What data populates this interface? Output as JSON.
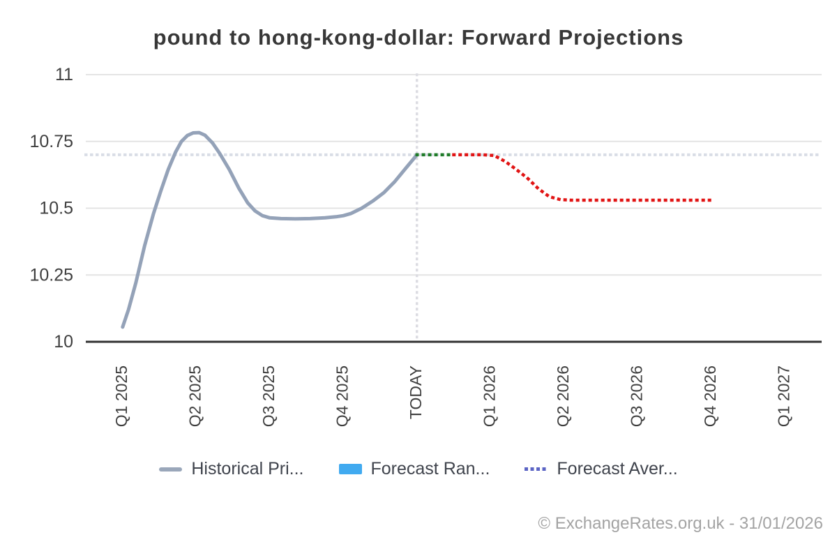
{
  "title": "pound to hong-kong-dollar: Forward Projections",
  "watermark": "© ExchangeRates.org.uk - 31/01/2026",
  "legend": {
    "items": [
      {
        "label": "Historical Pri...",
        "swatch": "line",
        "color": "#9AA7BA"
      },
      {
        "label": "Forecast Ran...",
        "swatch": "rect",
        "color": "#41AAF0"
      },
      {
        "label": "Forecast Aver...",
        "swatch": "dots",
        "color": "#5B64C4"
      }
    ]
  },
  "colors": {
    "historical_line": "#94A2B8",
    "forecast_near_green": "#1F7B28",
    "forecast_average_red": "#E11414",
    "current_rate_dotted": "#D9DDE6",
    "today_line": "#DCDCE2",
    "gridline": "#E4E4E4",
    "axis": "#333333"
  },
  "chart_data": {
    "type": "line",
    "title": "pound to hong-kong-dollar: Forward Projections",
    "categories": [
      "Q1 2025",
      "Q2 2025",
      "Q3 2025",
      "Q4 2025",
      "TODAY",
      "Q1 2026",
      "Q2 2026",
      "Q3 2026",
      "Q4 2026",
      "Q1 2027"
    ],
    "ylim": [
      10,
      11
    ],
    "yticks": [
      10,
      10.25,
      10.5,
      10.75,
      11
    ],
    "ytick_labels": [
      "10",
      "10.25",
      "10.5",
      "10.75",
      "11"
    ],
    "grid": "horizontal",
    "legend_position": "bottom",
    "key_values": {
      "historical_price": {
        "Q1 2025": 10.06,
        "Q2 2025": 10.78,
        "Q3 2025": 10.46,
        "Q4 2025": 10.47,
        "TODAY": 10.7
      },
      "forecast_average": {
        "Q1 2026": 10.7,
        "Q2 2026": 10.53,
        "Q3 2026": 10.53,
        "Q4 2026": 10.53
      }
    },
    "series": [
      {
        "id": "historical-price",
        "style": "solid",
        "color": "#94A2B8",
        "width": 5,
        "points": [
          [
            0,
            10.055
          ],
          [
            0.08,
            10.12
          ],
          [
            0.18,
            10.22
          ],
          [
            0.3,
            10.36
          ],
          [
            0.42,
            10.48
          ],
          [
            0.52,
            10.565
          ],
          [
            0.62,
            10.645
          ],
          [
            0.72,
            10.71
          ],
          [
            0.8,
            10.75
          ],
          [
            0.88,
            10.772
          ],
          [
            0.96,
            10.782
          ],
          [
            1.04,
            10.783
          ],
          [
            1.12,
            10.773
          ],
          [
            1.22,
            10.745
          ],
          [
            1.32,
            10.705
          ],
          [
            1.45,
            10.645
          ],
          [
            1.58,
            10.575
          ],
          [
            1.7,
            10.52
          ],
          [
            1.8,
            10.49
          ],
          [
            1.9,
            10.472
          ],
          [
            2.0,
            10.464
          ],
          [
            2.15,
            10.461
          ],
          [
            2.35,
            10.46
          ],
          [
            2.55,
            10.461
          ],
          [
            2.75,
            10.464
          ],
          [
            2.9,
            10.468
          ],
          [
            3.0,
            10.472
          ],
          [
            3.1,
            10.48
          ],
          [
            3.25,
            10.5
          ],
          [
            3.4,
            10.527
          ],
          [
            3.55,
            10.558
          ],
          [
            3.7,
            10.6
          ],
          [
            3.85,
            10.65
          ],
          [
            4.0,
            10.7
          ]
        ]
      },
      {
        "id": "forecast-near-term",
        "style": "dotted",
        "color": "#1F7B28",
        "width": 4.5,
        "points": [
          [
            4.0,
            10.7
          ],
          [
            4.48,
            10.7
          ]
        ]
      },
      {
        "id": "forecast-average",
        "style": "dotted",
        "color": "#E11414",
        "width": 4.5,
        "points": [
          [
            4.5,
            10.7
          ],
          [
            4.9,
            10.7
          ],
          [
            5.05,
            10.697
          ],
          [
            5.2,
            10.675
          ],
          [
            5.35,
            10.645
          ],
          [
            5.5,
            10.613
          ],
          [
            5.65,
            10.573
          ],
          [
            5.8,
            10.543
          ],
          [
            5.95,
            10.532
          ],
          [
            6.1,
            10.53
          ],
          [
            6.5,
            10.53
          ],
          [
            7.0,
            10.53
          ],
          [
            7.5,
            10.53
          ],
          [
            8.0,
            10.53
          ]
        ]
      }
    ],
    "annotations": {
      "current_rate_line": {
        "value": 10.7,
        "style": "dotted",
        "color": "#D9DDE6"
      },
      "today_line": {
        "category": "TODAY",
        "style": "dotted",
        "color": "#DCDCE2"
      }
    }
  }
}
